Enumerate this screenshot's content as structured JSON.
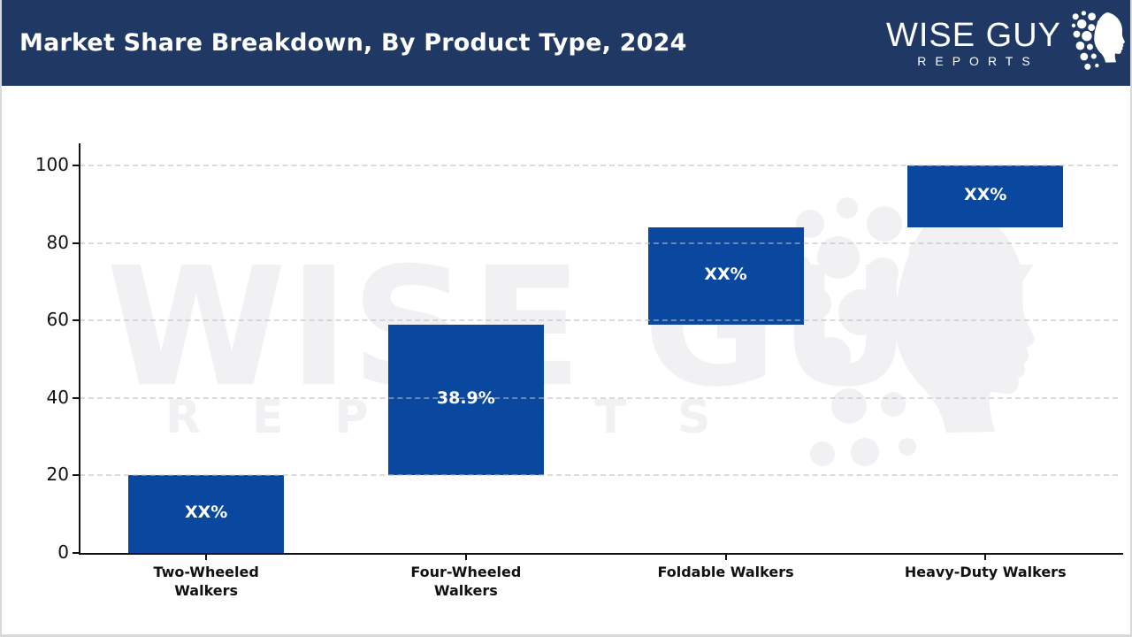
{
  "header": {
    "title": "Market Share Breakdown, By Product Type, 2024",
    "logo": {
      "line1": "WISE GUY",
      "line2": "REPORTS",
      "face_icon": "wiseguy-face-icon"
    }
  },
  "watermark": {
    "line1": "WISE GUY",
    "line2": "REPORTS",
    "face_icon": "wiseguy-face-watermark-icon"
  },
  "colors": {
    "header_bg": "#1F3864",
    "bar": "#0A479E",
    "grid": "#D9D9D9",
    "axis": "#111111",
    "bar_label": "#FFFFFF",
    "watermark": "#F1F1F3"
  },
  "chart_data": {
    "type": "bar",
    "subtype": "waterfall",
    "title": "Market Share Breakdown, By Product Type, 2024",
    "categories": [
      "Two-Wheeled Walkers",
      "Four-Wheeled Walkers",
      "Foldable Walkers",
      "Heavy-Duty Walkers"
    ],
    "category_label_lines": [
      [
        "Two-Wheeled",
        "Walkers"
      ],
      [
        "Four-Wheeled",
        "Walkers"
      ],
      [
        "Foldable Walkers"
      ],
      [
        "Heavy-Duty Walkers"
      ]
    ],
    "series": [
      {
        "name": "Market Share (%)",
        "starts": [
          0,
          20,
          58.9,
          84
        ],
        "values": [
          20,
          38.9,
          25.1,
          16
        ],
        "ends": [
          20,
          58.9,
          84,
          100
        ],
        "bar_labels": [
          "XX%",
          "38.9%",
          "XX%",
          "XX%"
        ]
      }
    ],
    "yticks": [
      0,
      20,
      40,
      60,
      80,
      100
    ],
    "ylim": [
      0,
      105.7
    ],
    "xlabel": "",
    "ylabel": "",
    "grid": "horizontal-dashed",
    "legend": "none"
  }
}
